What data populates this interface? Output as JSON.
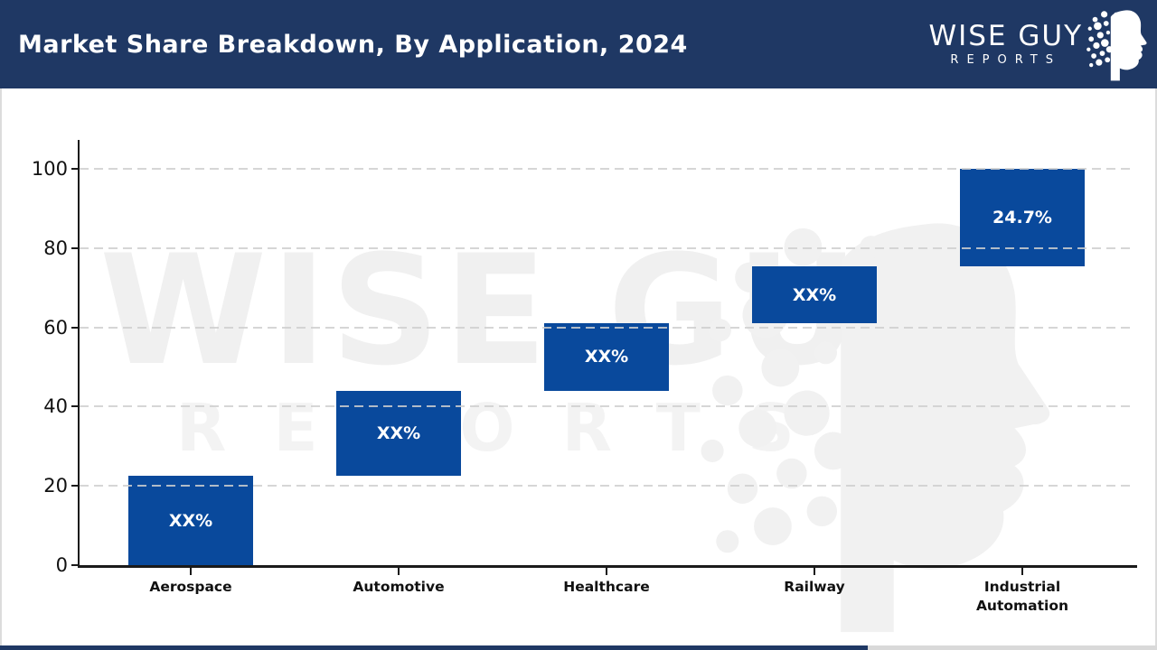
{
  "header": {
    "title": "Market Share Breakdown, By Application, 2024",
    "logo": {
      "line1": "WISE GUY",
      "line2": "REPORTS",
      "icon": "face-profile-dots-icon"
    },
    "bg_color": "#1f3864"
  },
  "watermark": {
    "line1": "WISE GUY",
    "line2": "REPORTS",
    "icon": "face-profile-dots-icon"
  },
  "chart_data": {
    "type": "bar",
    "subtype": "waterfall",
    "title": "Market Share Breakdown, By Application, 2024",
    "categories": [
      "Aerospace",
      "Automotive",
      "Healthcare",
      "Railway",
      "Industrial Automation"
    ],
    "bars": [
      {
        "category": "Aerospace",
        "start": 0,
        "end": 22.5,
        "value_label": "XX%"
      },
      {
        "category": "Automotive",
        "start": 22.5,
        "end": 44.0,
        "value_label": "XX%"
      },
      {
        "category": "Healthcare",
        "start": 44.0,
        "end": 61.1,
        "value_label": "XX%"
      },
      {
        "category": "Railway",
        "start": 61.1,
        "end": 75.3,
        "value_label": "XX%"
      },
      {
        "category": "Industrial Automation",
        "start": 75.3,
        "end": 100,
        "value_label": "24.7%"
      }
    ],
    "ylim": [
      0,
      100
    ],
    "yticks": [
      0,
      20,
      40,
      60,
      80,
      100
    ],
    "xlabel": "",
    "ylabel": "",
    "grid": "horizontal dashed",
    "legend": "none",
    "bar_color": "#09499c",
    "bar_label_color": "#ffffff"
  }
}
